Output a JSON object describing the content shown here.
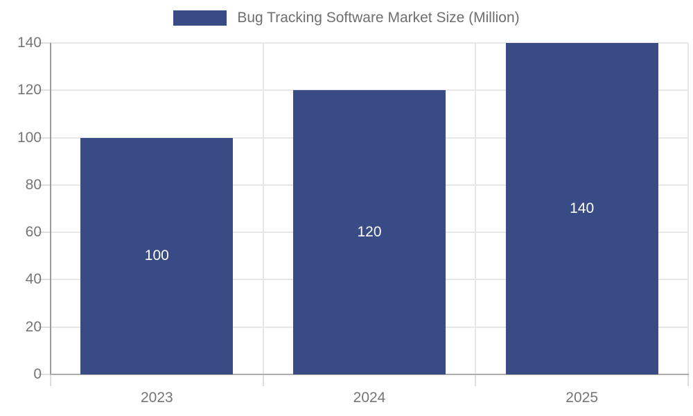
{
  "legend": {
    "label": "Bug Tracking Software Market Size (Million)",
    "swatch_color": "#394b85"
  },
  "chart_data": {
    "type": "bar",
    "title": "Bug Tracking Software Market Size (Million)",
    "series_name": "Bug Tracking Software Market Size (Million)",
    "categories": [
      "2023",
      "2024",
      "2025"
    ],
    "values": [
      100,
      120,
      140
    ],
    "data_labels": [
      "100",
      "120",
      "140"
    ],
    "xlabel": "",
    "ylabel": "",
    "ylim": [
      0,
      140
    ],
    "yticks": [
      0,
      20,
      40,
      60,
      80,
      100,
      120,
      140
    ],
    "grid": true,
    "legend_position": "top-center",
    "colors": {
      "bar": "#394b85",
      "data_label": "#ffffff",
      "gridline": "#e7e7e7",
      "y_axis_line": "#9b9b9b",
      "x_axis_line": "#acacac",
      "tick_mark": "#dcdee4",
      "tick_label": "#757575",
      "legend_text": "#6e6e6e"
    }
  }
}
